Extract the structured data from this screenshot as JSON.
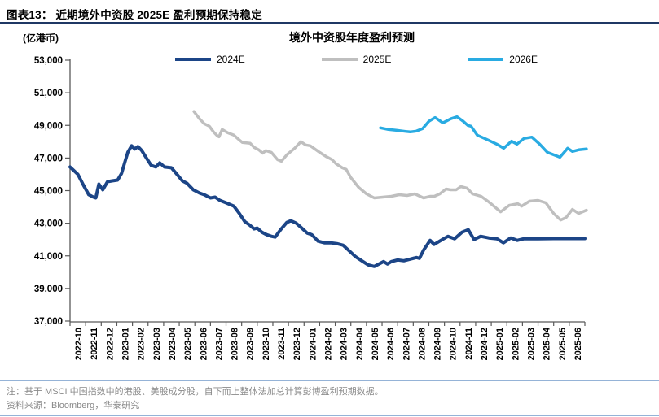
{
  "figure": {
    "title": "图表13：  近期境外中资股 2025E 盈利预期保持稳定",
    "note": "注：基于 MSCI 中国指数中的港股、美股成分股，自下而上整体法加总计算彭博盈利预期数据。",
    "source": "资料来源：Bloomberg，华泰研究"
  },
  "colors": {
    "header_rule": "#1F3864",
    "footer_rule": "#95B3D7",
    "axis": "#595959",
    "tick_label": "#000000",
    "note_text": "#8a8a8a"
  },
  "chart_data": {
    "type": "line",
    "title": "境外中资股年度盈利预测",
    "unit_label": "(亿港币)",
    "xlabel": "",
    "ylabel": "",
    "ylim": [
      37000,
      53000
    ],
    "y_tick_step": 2000,
    "y_ticks": [
      37000,
      39000,
      41000,
      43000,
      45000,
      47000,
      49000,
      51000,
      53000
    ],
    "grid": false,
    "legend_position": "top",
    "x_unit": "month index (0 = 2022-10, 32 = 2025-06, fractional = intra-month reading)",
    "categories": [
      "2022-10",
      "2022-11",
      "2022-12",
      "2023-01",
      "2023-02",
      "2023-03",
      "2023-04",
      "2023-05",
      "2023-06",
      "2023-07",
      "2023-08",
      "2023-09",
      "2023-10",
      "2023-11",
      "2023-12",
      "2024-01",
      "2024-02",
      "2024-03",
      "2024-04",
      "2024-05",
      "2024-06",
      "2024-07",
      "2024-08",
      "2024-09",
      "2024-10",
      "2024-11",
      "2024-12",
      "2025-01",
      "2025-02",
      "2025-03",
      "2025-04",
      "2025-05",
      "2025-06"
    ],
    "series": [
      {
        "name": "2024E",
        "color": "#1C4587",
        "stroke_width": 4,
        "points": [
          [
            -0.5,
            46450
          ],
          [
            0,
            46000
          ],
          [
            0.35,
            45350
          ],
          [
            0.7,
            44750
          ],
          [
            1,
            44600
          ],
          [
            1.15,
            44550
          ],
          [
            1.35,
            45400
          ],
          [
            1.6,
            45050
          ],
          [
            1.9,
            45550
          ],
          [
            2.2,
            45600
          ],
          [
            2.55,
            45650
          ],
          [
            2.8,
            46050
          ],
          [
            3,
            46700
          ],
          [
            3.2,
            47350
          ],
          [
            3.45,
            47750
          ],
          [
            3.65,
            47550
          ],
          [
            3.85,
            47700
          ],
          [
            4.1,
            47450
          ],
          [
            4.4,
            47000
          ],
          [
            4.7,
            46550
          ],
          [
            5,
            46450
          ],
          [
            5.25,
            46700
          ],
          [
            5.55,
            46450
          ],
          [
            6,
            46400
          ],
          [
            6.4,
            45950
          ],
          [
            6.7,
            45600
          ],
          [
            7,
            45450
          ],
          [
            7.4,
            45050
          ],
          [
            7.8,
            44850
          ],
          [
            8.1,
            44750
          ],
          [
            8.5,
            44550
          ],
          [
            8.8,
            44600
          ],
          [
            9.1,
            44400
          ],
          [
            9.5,
            44250
          ],
          [
            10,
            44050
          ],
          [
            10.35,
            43600
          ],
          [
            10.7,
            43100
          ],
          [
            11,
            42900
          ],
          [
            11.3,
            42650
          ],
          [
            11.5,
            42700
          ],
          [
            11.8,
            42450
          ],
          [
            12.1,
            42300
          ],
          [
            12.4,
            42200
          ],
          [
            12.65,
            42150
          ],
          [
            13,
            42600
          ],
          [
            13.4,
            43050
          ],
          [
            13.65,
            43150
          ],
          [
            14,
            43000
          ],
          [
            14.3,
            42750
          ],
          [
            14.7,
            42400
          ],
          [
            15,
            42300
          ],
          [
            15.4,
            41900
          ],
          [
            15.8,
            41800
          ],
          [
            16.2,
            41800
          ],
          [
            16.6,
            41750
          ],
          [
            17,
            41650
          ],
          [
            17.4,
            41300
          ],
          [
            17.8,
            40950
          ],
          [
            18.2,
            40700
          ],
          [
            18.6,
            40450
          ],
          [
            19,
            40350
          ],
          [
            19.3,
            40500
          ],
          [
            19.6,
            40650
          ],
          [
            19.85,
            40500
          ],
          [
            20.1,
            40650
          ],
          [
            20.5,
            40750
          ],
          [
            20.9,
            40700
          ],
          [
            21.3,
            40800
          ],
          [
            21.7,
            40900
          ],
          [
            21.9,
            40850
          ],
          [
            22.16,
            41350
          ],
          [
            22.58,
            41950
          ],
          [
            22.84,
            41700
          ],
          [
            23.36,
            42000
          ],
          [
            23.73,
            42200
          ],
          [
            24.15,
            42050
          ],
          [
            24.62,
            42450
          ],
          [
            25.03,
            42600
          ],
          [
            25.4,
            42000
          ],
          [
            25.82,
            42200
          ],
          [
            26.34,
            42100
          ],
          [
            26.86,
            42050
          ],
          [
            27.28,
            41800
          ],
          [
            27.75,
            42100
          ],
          [
            28.17,
            41950
          ],
          [
            28.6,
            42050
          ],
          [
            29.5,
            42050
          ],
          [
            30.5,
            42060
          ],
          [
            31.5,
            42060
          ],
          [
            32.5,
            42060
          ]
        ]
      },
      {
        "name": "2025E",
        "color": "#BFBFBF",
        "stroke_width": 3.5,
        "points": [
          [
            7.44,
            49850
          ],
          [
            7.8,
            49400
          ],
          [
            8.1,
            49100
          ],
          [
            8.43,
            48950
          ],
          [
            8.7,
            48600
          ],
          [
            8.95,
            48350
          ],
          [
            9.05,
            48300
          ],
          [
            9.25,
            48750
          ],
          [
            9.6,
            48550
          ],
          [
            10,
            48400
          ],
          [
            10.3,
            48150
          ],
          [
            10.55,
            47950
          ],
          [
            11.05,
            47900
          ],
          [
            11.3,
            47650
          ],
          [
            11.6,
            47500
          ],
          [
            11.85,
            47300
          ],
          [
            12.05,
            47450
          ],
          [
            12.4,
            47350
          ],
          [
            12.8,
            46900
          ],
          [
            13.05,
            46800
          ],
          [
            13.4,
            47200
          ],
          [
            13.9,
            47600
          ],
          [
            14.3,
            48000
          ],
          [
            14.6,
            47800
          ],
          [
            14.9,
            47750
          ],
          [
            15.5,
            47350
          ],
          [
            15.9,
            47100
          ],
          [
            16.3,
            46900
          ],
          [
            16.55,
            46650
          ],
          [
            16.95,
            46400
          ],
          [
            17.2,
            46300
          ],
          [
            17.5,
            45800
          ],
          [
            18,
            45200
          ],
          [
            18.5,
            44800
          ],
          [
            19,
            44550
          ],
          [
            19.55,
            44600
          ],
          [
            20.1,
            44650
          ],
          [
            20.6,
            44750
          ],
          [
            21.1,
            44700
          ],
          [
            21.6,
            44800
          ],
          [
            22.16,
            44550
          ],
          [
            22.6,
            44650
          ],
          [
            22.85,
            44650
          ],
          [
            23.2,
            44800
          ],
          [
            23.6,
            45100
          ],
          [
            23.9,
            45050
          ],
          [
            24.25,
            45050
          ],
          [
            24.55,
            45250
          ],
          [
            24.95,
            45150
          ],
          [
            25.3,
            44800
          ],
          [
            25.85,
            44650
          ],
          [
            26.35,
            44300
          ],
          [
            27.1,
            43700
          ],
          [
            27.65,
            44100
          ],
          [
            28.2,
            44200
          ],
          [
            28.45,
            44050
          ],
          [
            28.95,
            44350
          ],
          [
            29.5,
            44400
          ],
          [
            30,
            44250
          ],
          [
            30.5,
            43600
          ],
          [
            30.95,
            43200
          ],
          [
            31.3,
            43350
          ],
          [
            31.7,
            43850
          ],
          [
            32.1,
            43600
          ],
          [
            32.6,
            43800
          ]
        ]
      },
      {
        "name": "2026E",
        "color": "#29ABE2",
        "stroke_width": 3.5,
        "points": [
          [
            19.4,
            48850
          ],
          [
            19.9,
            48750
          ],
          [
            20.4,
            48700
          ],
          [
            21,
            48630
          ],
          [
            21.3,
            48600
          ],
          [
            21.7,
            48650
          ],
          [
            22.1,
            48800
          ],
          [
            22.5,
            49250
          ],
          [
            22.9,
            49480
          ],
          [
            23.4,
            49150
          ],
          [
            23.9,
            49400
          ],
          [
            24.3,
            49530
          ],
          [
            24.7,
            49250
          ],
          [
            25,
            49000
          ],
          [
            25.2,
            48950
          ],
          [
            25.6,
            48400
          ],
          [
            26.3,
            48100
          ],
          [
            26.85,
            47850
          ],
          [
            27.3,
            47600
          ],
          [
            27.8,
            48030
          ],
          [
            28.15,
            47850
          ],
          [
            28.6,
            48200
          ],
          [
            29.1,
            48280
          ],
          [
            29.6,
            47850
          ],
          [
            30.1,
            47350
          ],
          [
            30.5,
            47200
          ],
          [
            30.9,
            47050
          ],
          [
            31.4,
            47600
          ],
          [
            31.7,
            47400
          ],
          [
            32.1,
            47500
          ],
          [
            32.6,
            47550
          ]
        ]
      }
    ]
  }
}
